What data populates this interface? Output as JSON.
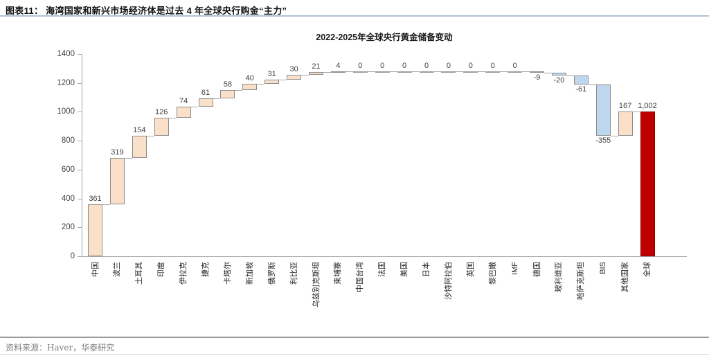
{
  "header": {
    "title": "图表11：  海湾国家和新兴市场经济体是过去 4 年全球央行购金“主力”"
  },
  "footer": {
    "source": "资料来源：Haver，华泰研究"
  },
  "chart_data": {
    "type": "bar",
    "subtype": "waterfall",
    "title": "2022-2025年全球央行黄金储备变动",
    "xlabel": "",
    "ylabel": "",
    "ylim": [
      0,
      1400
    ],
    "yticks": [
      0,
      200,
      400,
      600,
      800,
      1000,
      1200,
      1400
    ],
    "grid": false,
    "legend": false,
    "last_is_total": true,
    "categories": [
      "中国",
      "波兰",
      "土耳其",
      "印度",
      "伊拉克",
      "捷克",
      "卡塔尔",
      "新加坡",
      "俄罗斯",
      "利比亚",
      "乌兹别克斯坦",
      "柬埔寨",
      "中国台湾",
      "法国",
      "美国",
      "日本",
      "沙特阿拉伯",
      "英国",
      "黎巴嫩",
      "IMF",
      "德国",
      "玻利维亚",
      "哈萨克斯坦",
      "BIS",
      "其他国家",
      "全球"
    ],
    "values": [
      361,
      319,
      154,
      126,
      74,
      61,
      58,
      40,
      31,
      30,
      21,
      4,
      0,
      0,
      0,
      0,
      0,
      0,
      0,
      0,
      -9,
      -20,
      -61,
      -355,
      167,
      1002
    ],
    "value_labels": [
      "361",
      "319",
      "154",
      "126",
      "74",
      "61",
      "58",
      "40",
      "31",
      "30",
      "21",
      "4",
      "0",
      "0",
      "0",
      "0",
      "0",
      "0",
      "0",
      "0",
      "-9",
      "-20",
      "-61",
      "-355",
      "167",
      "1,002"
    ],
    "colors": {
      "positive": "#fae0c8",
      "negative": "#bdd7ee",
      "total": "#c00000",
      "zero": "#9b9b9b",
      "bar_border": "#8c8c8c",
      "connector": "#a6a6a6",
      "axis": "#a6a6a6"
    }
  }
}
